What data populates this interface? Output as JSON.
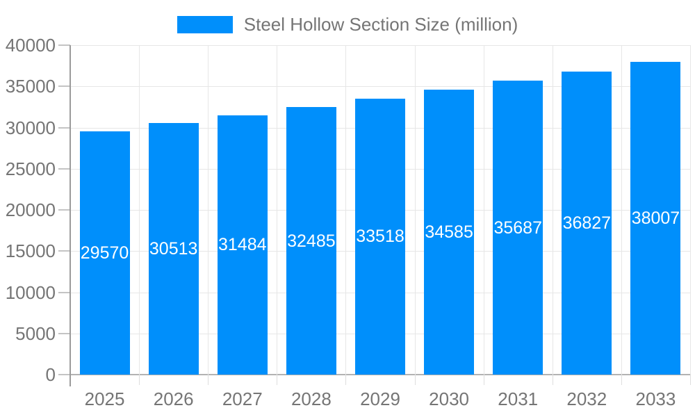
{
  "legend": {
    "label": "Steel Hollow Section Size (million)"
  },
  "colors": {
    "bar": "#008FFB",
    "bar_label_text": "#ffffff",
    "axis_text": "#757575",
    "legend_text": "#757575",
    "gridline": "#e6e6e6",
    "axis_line": "#9a9a9a",
    "baseline": "#b3b3b3",
    "tick_left": "#c4c4c4",
    "tick_bottom": "#dedede",
    "background": "#ffffff"
  },
  "chart_data": {
    "type": "bar",
    "title": "Steel Hollow Section Size (million)",
    "series_name": "Steel Hollow Section Size (million)",
    "categories": [
      "2025",
      "2026",
      "2027",
      "2028",
      "2029",
      "2030",
      "2031",
      "2032",
      "2033"
    ],
    "values": [
      29570,
      30513,
      31484,
      32485,
      33518,
      34585,
      35687,
      36827,
      38007
    ],
    "data_labels": [
      29570,
      30513,
      31484,
      32485,
      33518,
      34585,
      35687,
      36827,
      38007
    ],
    "xlabel": "",
    "ylabel": "",
    "ylim": [
      0,
      40000
    ],
    "yticks": [
      0,
      5000,
      10000,
      15000,
      20000,
      25000,
      30000,
      35000,
      40000
    ],
    "grid": true,
    "legend_position": "top-center",
    "data_label_position": "inside-center",
    "bar_color": "#008FFB"
  }
}
